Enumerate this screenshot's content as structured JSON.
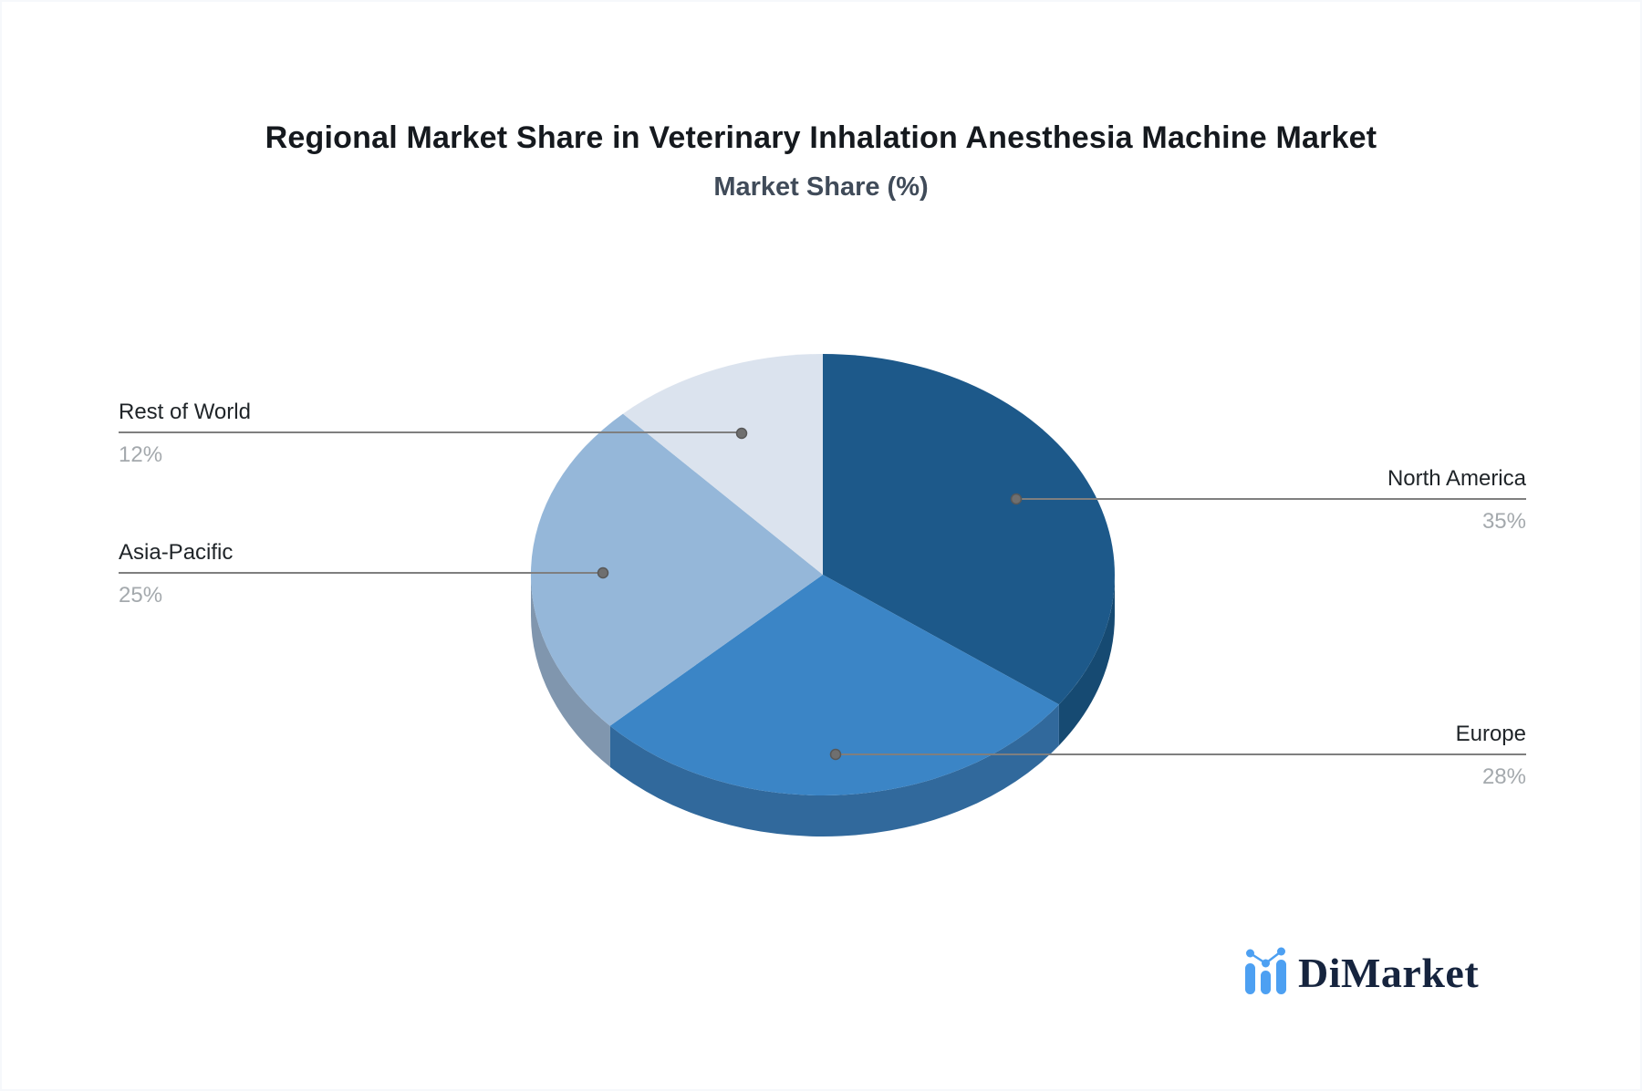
{
  "chart_data": {
    "type": "pie",
    "style": "3d",
    "title": "Regional Market Share in Veterinary Inhalation Anesthesia Machine Market",
    "subtitle": "Market Share (%)",
    "direction": "clockwise",
    "start_angle": "12-oclock",
    "legend_position": "none",
    "series": [
      {
        "label": "North America",
        "value": 35,
        "pct_label": "35%",
        "color": "#1d598a",
        "side_color": "#164a72"
      },
      {
        "label": "Europe",
        "value": 28,
        "pct_label": "28%",
        "color": "#3b85c6",
        "side_color": "#31699c"
      },
      {
        "label": "Asia-Pacific",
        "value": 25,
        "pct_label": "25%",
        "color": "#95b7d9",
        "side_color": "#8096ae"
      },
      {
        "label": "Rest of World",
        "value": 12,
        "pct_label": "12%",
        "color": "#dbe3ee",
        "side_color": "#b9c5d5"
      }
    ]
  },
  "branding": {
    "logo_text": "DiMarket"
  },
  "colors": {
    "leader_line": "#7f7f7f",
    "leader_dot": "#6f6f6f",
    "label_text": "#1f2428",
    "pct_text": "#a4a9ad"
  }
}
